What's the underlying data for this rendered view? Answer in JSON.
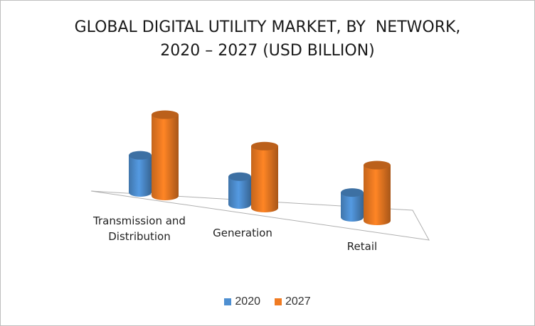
{
  "chart_data": {
    "type": "bar",
    "title": "GLOBAL DIGITAL UTILITY MARKET, BY  NETWORK,",
    "subtitle": "2020 – 2027 (USD BILLION)",
    "categories": [
      "Transmission and Distribution",
      "Generation",
      "Retail"
    ],
    "category_lines": [
      [
        "Transmission and",
        "Distribution"
      ],
      [
        "Generation"
      ],
      [
        "Retail"
      ]
    ],
    "series": [
      {
        "name": "2020",
        "values": [
          48,
          36,
          32
        ],
        "color": "#4e8fd1"
      },
      {
        "name": "2027",
        "values": [
          105,
          80,
          72
        ],
        "color": "#f07b22"
      }
    ],
    "ylim": [
      0,
      120
    ],
    "grid": false,
    "legend_position": "bottom",
    "style": "3d-cylinder"
  }
}
